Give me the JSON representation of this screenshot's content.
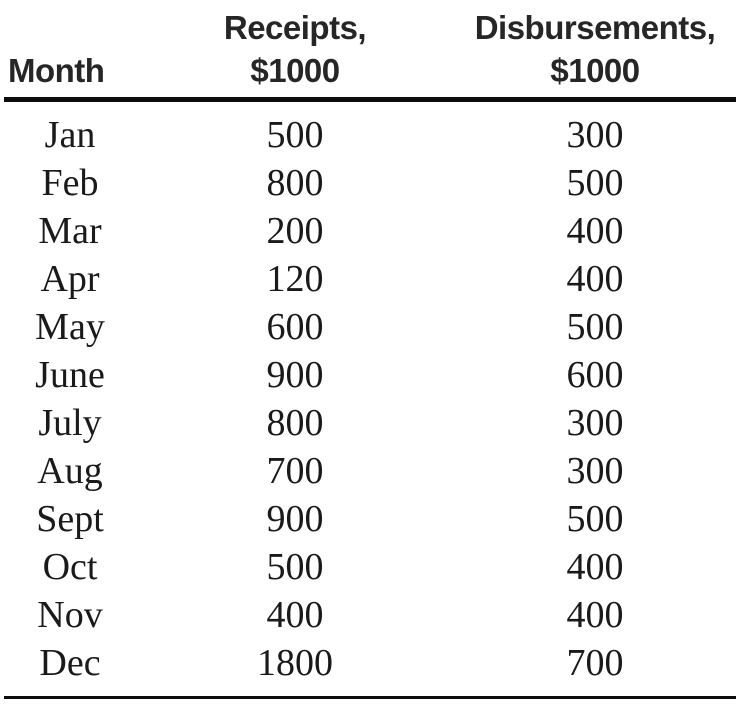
{
  "page": {
    "background": "#ffffff",
    "text_color": "#1a1a1a",
    "header_text_color": "#262626",
    "rule_color": "#0d0d0d"
  },
  "table": {
    "header": {
      "month_label": "Month",
      "receipts_label_line1": "Receipts,",
      "receipts_label_line2": "$1000",
      "disbursements_label_line1": "Disbursements,",
      "disbursements_label_line2": "$1000"
    },
    "rows": [
      {
        "month": "Jan",
        "receipts": "500",
        "disbursements": "300"
      },
      {
        "month": "Feb",
        "receipts": "800",
        "disbursements": "500"
      },
      {
        "month": "Mar",
        "receipts": "200",
        "disbursements": "400"
      },
      {
        "month": "Apr",
        "receipts": "120",
        "disbursements": "400"
      },
      {
        "month": "May",
        "receipts": "600",
        "disbursements": "500"
      },
      {
        "month": "June",
        "receipts": "900",
        "disbursements": "600"
      },
      {
        "month": "July",
        "receipts": "800",
        "disbursements": "300"
      },
      {
        "month": "Aug",
        "receipts": "700",
        "disbursements": "300"
      },
      {
        "month": "Sept",
        "receipts": "900",
        "disbursements": "500"
      },
      {
        "month": "Oct",
        "receipts": "500",
        "disbursements": "400"
      },
      {
        "month": "Nov",
        "receipts": "400",
        "disbursements": "400"
      },
      {
        "month": "Dec",
        "receipts": "1800",
        "disbursements": "700"
      }
    ]
  },
  "chart_data": {
    "type": "table",
    "columns": [
      "Month",
      "Receipts, $1000",
      "Disbursements, $1000"
    ],
    "rows": [
      [
        "Jan",
        500,
        300
      ],
      [
        "Feb",
        800,
        500
      ],
      [
        "Mar",
        200,
        400
      ],
      [
        "Apr",
        120,
        400
      ],
      [
        "May",
        600,
        500
      ],
      [
        "June",
        900,
        600
      ],
      [
        "July",
        800,
        300
      ],
      [
        "Aug",
        700,
        300
      ],
      [
        "Sept",
        900,
        500
      ],
      [
        "Oct",
        500,
        400
      ],
      [
        "Nov",
        400,
        400
      ],
      [
        "Dec",
        1800,
        700
      ]
    ]
  }
}
